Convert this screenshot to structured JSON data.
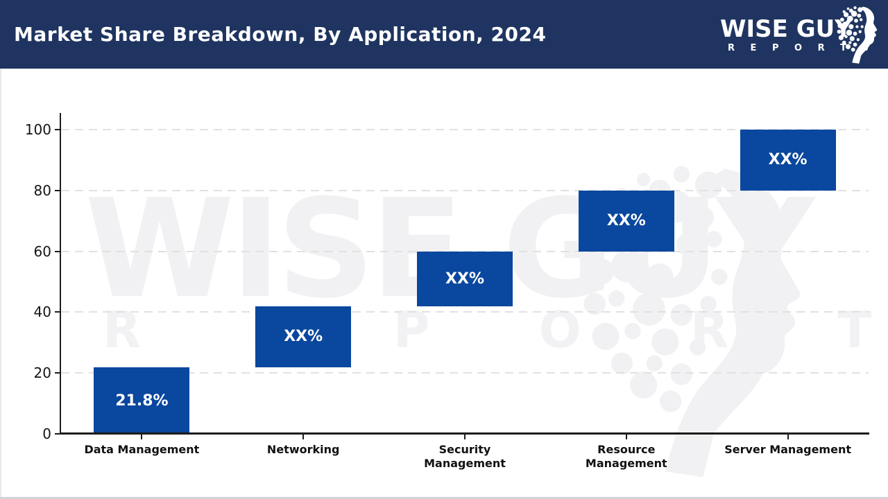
{
  "header": {
    "title": "Market Share Breakdown, By Application, 2024",
    "background_color": "#1f3460",
    "logo": {
      "line1": "WISE GUY",
      "line2": "R E P O R T S"
    }
  },
  "watermark": {
    "line1": "WISE GUY",
    "line2": "R E P O R T S"
  },
  "chart_data": {
    "type": "bar",
    "variant": "waterfall",
    "title": "Market Share Breakdown, By Application, 2024",
    "categories": [
      "Data Management",
      "Networking",
      "Security Management",
      "Resource Management",
      "Server Management"
    ],
    "category_label_lines": [
      [
        "Data Management"
      ],
      [
        "Networking"
      ],
      [
        "Security",
        "Management"
      ],
      [
        "Resource",
        "Management"
      ],
      [
        "Server Management"
      ]
    ],
    "bars": [
      {
        "category": "Data Management",
        "start": 0,
        "end": 21.8,
        "label": "21.8%"
      },
      {
        "category": "Networking",
        "start": 21.8,
        "end": 42,
        "label": "XX%"
      },
      {
        "category": "Security Management",
        "start": 42,
        "end": 60,
        "label": "XX%"
      },
      {
        "category": "Resource Management",
        "start": 60,
        "end": 80,
        "label": "XX%"
      },
      {
        "category": "Server Management",
        "start": 80,
        "end": 100,
        "label": "XX%"
      }
    ],
    "bar_color": "#0a479e",
    "bar_label_color": "#ffffff",
    "xlabel": "",
    "ylabel": "",
    "ylim": [
      0,
      100
    ],
    "yticks": [
      0,
      20,
      40,
      60,
      80,
      100
    ],
    "grid": {
      "axis": "y",
      "style": "dashed",
      "color": "#e1e1e1"
    },
    "legend": null
  }
}
